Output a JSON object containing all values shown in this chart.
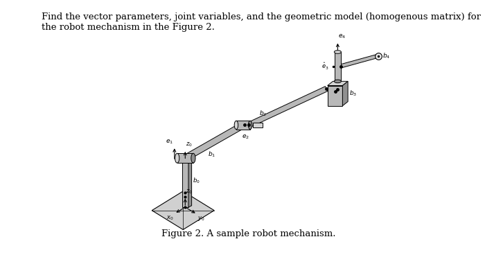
{
  "title_text": "Find the vector parameters, joint variables, and the geometric model (homogenous matrix) for\nthe robot mechanism in the Figure 2.",
  "caption": "Figure 2. A sample robot mechanism.",
  "bg_color": "#ffffff",
  "title_fontsize": 9.5,
  "caption_fontsize": 9.5,
  "black": "#000000",
  "c_light": "#d4d4d4",
  "c_mid": "#b8b8b8",
  "c_dark": "#909090",
  "c_base": "#c8c8c8",
  "label_fontsize": 6.5
}
